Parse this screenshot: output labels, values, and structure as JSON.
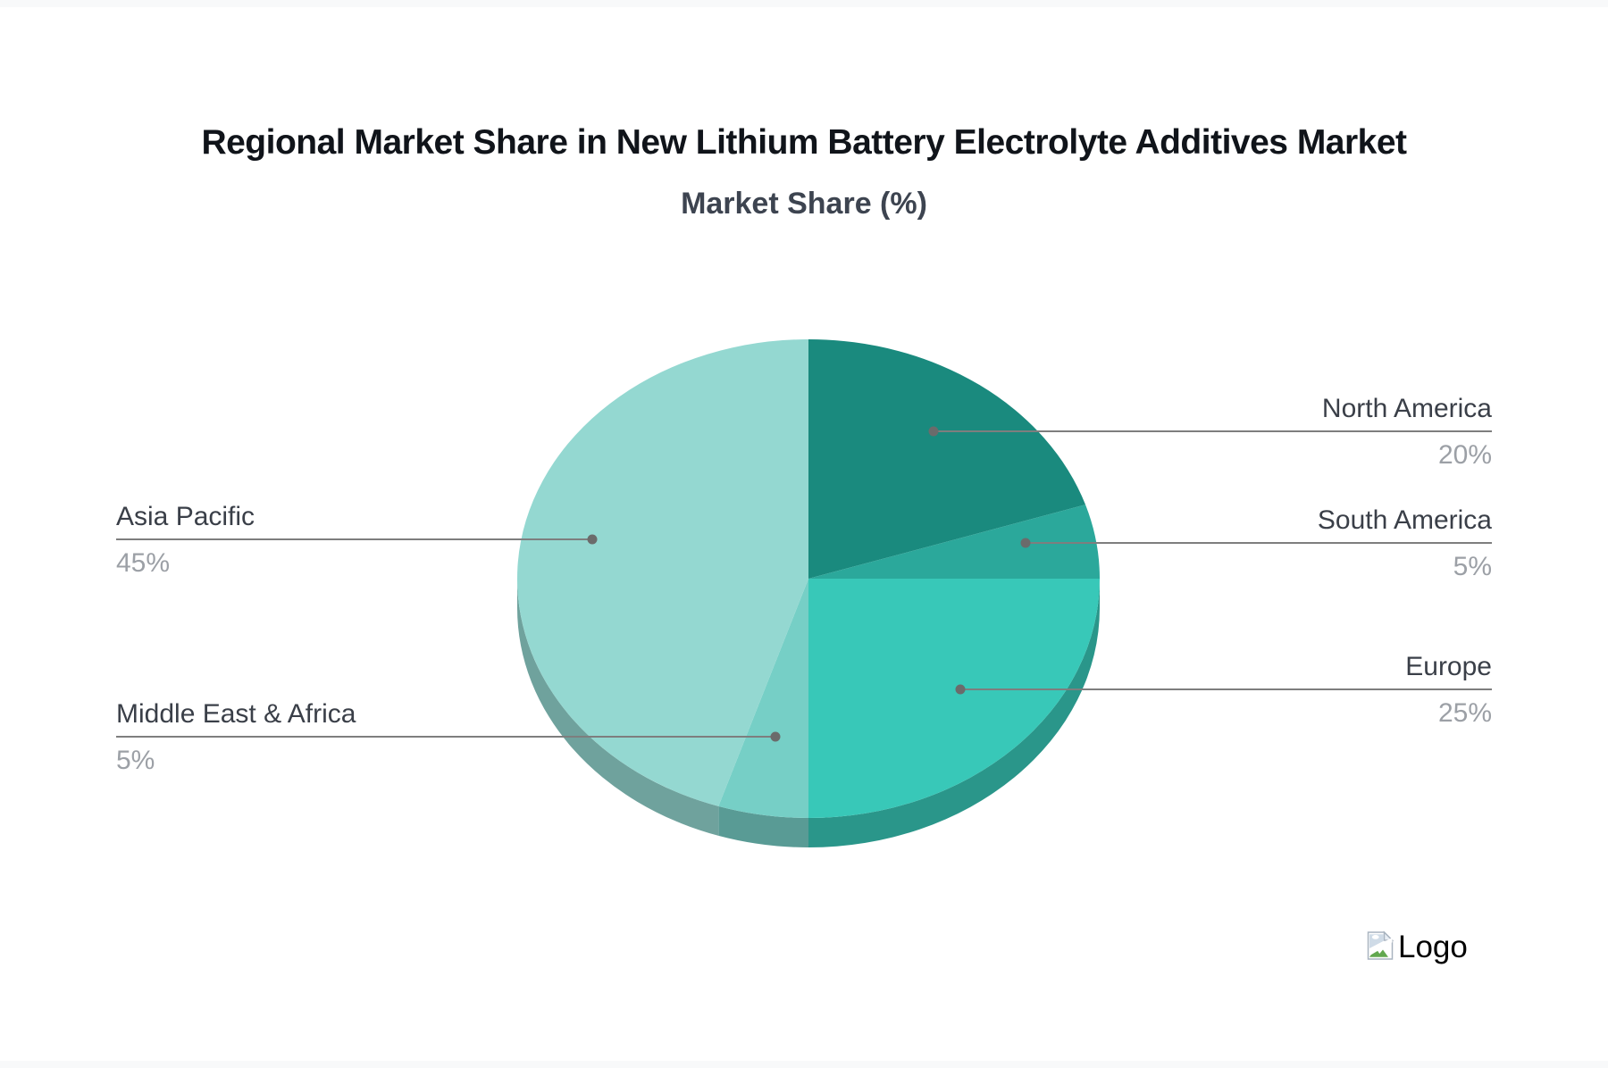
{
  "header": {
    "title": "Regional Market Share in New Lithium Battery Electrolyte Additives Market",
    "subtitle": "Market Share (%)"
  },
  "chart_data": {
    "type": "pie",
    "style": "3d-pie",
    "title": "Regional Market Share in New Lithium Battery Electrolyte Additives Market",
    "subtitle": "Market Share (%)",
    "unit": "%",
    "direction": "clockwise",
    "start_angle": "12-oclock",
    "legend": "none",
    "labels": [
      "North America",
      "South America",
      "Europe",
      "Middle East & Africa",
      "Asia Pacific"
    ],
    "values": [
      20,
      5,
      25,
      5,
      45
    ],
    "value_labels": [
      "20%",
      "5%",
      "25%",
      "5%",
      "45%"
    ],
    "label_sides": [
      "right",
      "right",
      "right",
      "left",
      "left"
    ],
    "colors": [
      "#1A8A7E",
      "#2BA89B",
      "#38C8B8",
      "#76CFC6",
      "#94D8D1"
    ],
    "leader_line_color": "#7E7E7E",
    "leader_dot_color": "#6B6B6B",
    "label_name_color": "#3A3F48",
    "label_value_color": "#9CA0A6"
  },
  "footer": {
    "logo_alt": "Logo"
  }
}
